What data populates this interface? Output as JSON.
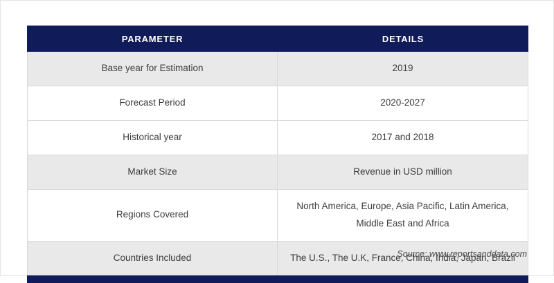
{
  "colors": {
    "header_navy": "#101b5a",
    "row_shaded": "#e9e9ea",
    "row_plain": "#ffffff",
    "border": "#d9d9d9",
    "text": "#3c3c3c"
  },
  "table": {
    "headers": [
      "PARAMETER",
      "DETAILS"
    ],
    "rows": [
      {
        "parameter": "Base year for Estimation",
        "details": "2019",
        "shaded": true
      },
      {
        "parameter": "Forecast Period",
        "details": "2020-2027",
        "shaded": false
      },
      {
        "parameter": "Historical year",
        "details": "2017 and 2018",
        "shaded": false
      },
      {
        "parameter": "Market Size",
        "details": "Revenue in USD million",
        "shaded": true
      },
      {
        "parameter": "Regions Covered",
        "details": "North America, Europe, Asia Pacific, Latin America, Middle East and Africa",
        "shaded": false
      },
      {
        "parameter": "Countries Included",
        "details": "The U.S., The  U.K, France, China, India, Japan, Brazil",
        "shaded": true
      }
    ]
  },
  "source": "Source: www.reportsanddata.com",
  "chart_data": {
    "type": "table",
    "title": "",
    "columns": [
      "PARAMETER",
      "DETAILS"
    ],
    "rows": [
      [
        "Base year for Estimation",
        "2019"
      ],
      [
        "Forecast Period",
        "2020-2027"
      ],
      [
        "Historical year",
        "2017 and 2018"
      ],
      [
        "Market Size",
        "Revenue in USD million"
      ],
      [
        "Regions Covered",
        "North America, Europe, Asia Pacific, Latin America, Middle East and Africa"
      ],
      [
        "Countries Included",
        "The U.S., The  U.K, France, China, India, Japan, Brazil"
      ]
    ],
    "layout_hints": {
      "header_background": "#101b5a",
      "zebra_shaded_rows": [
        0,
        3,
        5
      ],
      "footer_bar": true
    }
  }
}
